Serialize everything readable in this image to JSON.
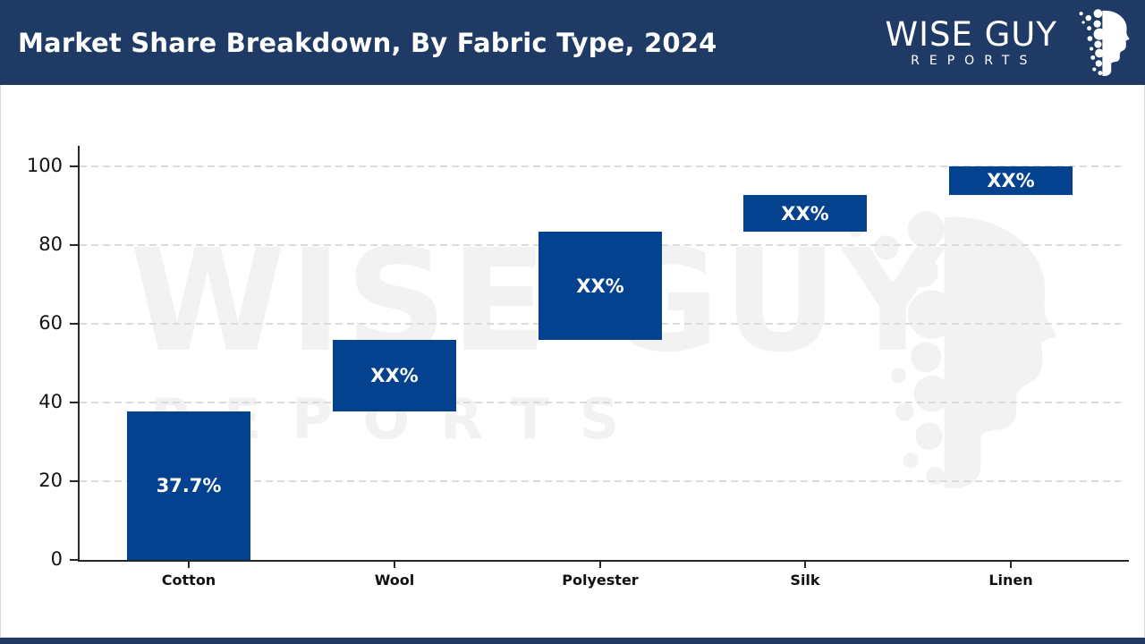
{
  "header": {
    "title": "Market Share Breakdown, By Fabric Type, 2024",
    "logo": {
      "line1": "WISE GUY",
      "line2": "REPORTS"
    }
  },
  "watermark": {
    "line1": "WISE GUY",
    "line2": "REPORTS"
  },
  "colors": {
    "header_bg": "#1f3a64",
    "bar": "#04428f",
    "bar_label": "#ffffff",
    "gridline": "#dcdcdc",
    "axis": "#262626",
    "watermark": "#f2f2f2"
  },
  "chart_data": {
    "type": "bar",
    "subtype": "waterfall",
    "title": "Market Share Breakdown, By Fabric Type, 2024",
    "categories": [
      "Cotton",
      "Wool",
      "Polyester",
      "Silk",
      "Linen"
    ],
    "segments": [
      {
        "category": "Cotton",
        "start": 0,
        "end": 37.7,
        "label": "37.7%"
      },
      {
        "category": "Wool",
        "start": 37.7,
        "end": 55.9,
        "label": "XX%"
      },
      {
        "category": "Polyester",
        "start": 55.9,
        "end": 83.4,
        "label": "XX%"
      },
      {
        "category": "Silk",
        "start": 83.4,
        "end": 92.7,
        "label": "XX%"
      },
      {
        "category": "Linen",
        "start": 92.7,
        "end": 100,
        "label": "XX%"
      }
    ],
    "yticks": [
      0,
      20,
      40,
      60,
      80,
      100
    ],
    "ylim": [
      0,
      104.8
    ],
    "xlabel": "",
    "ylabel": "",
    "grid": "horizontal-dashed",
    "legend": "none"
  }
}
